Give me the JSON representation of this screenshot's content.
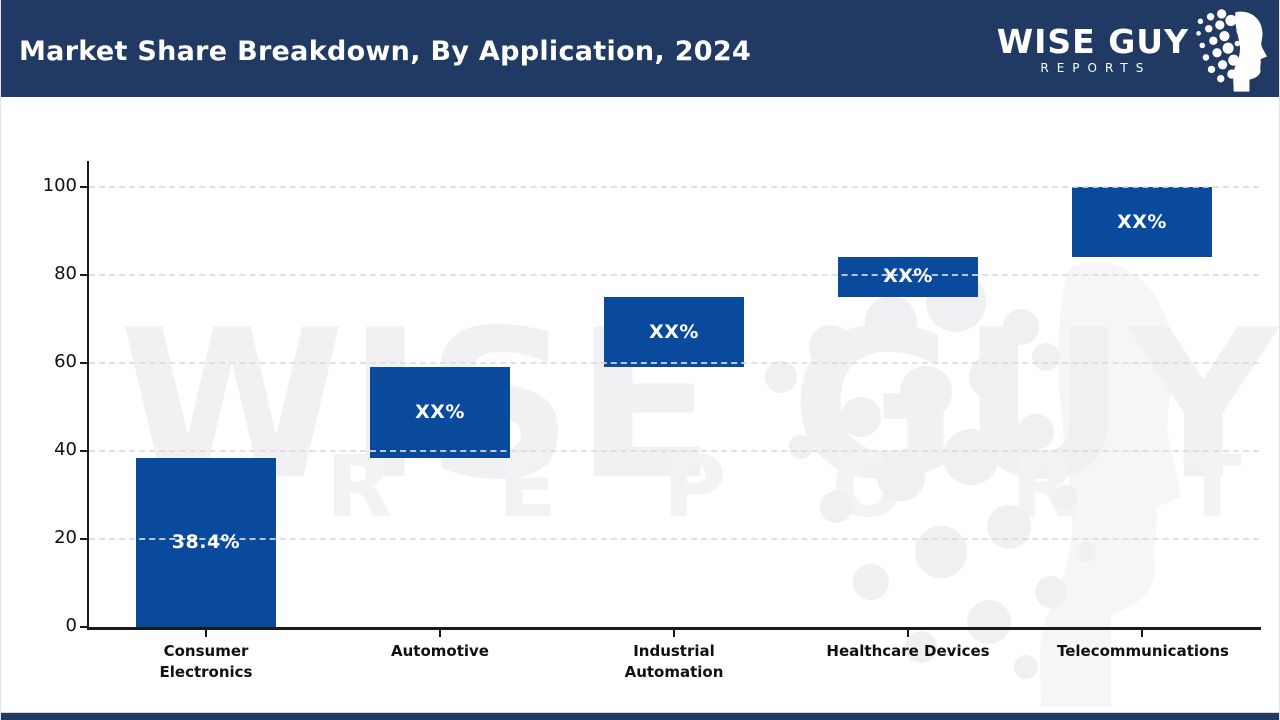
{
  "header": {
    "title": "Market Share Breakdown, By Application, 2024",
    "logo": {
      "line1": "WISE GUY",
      "line2": "REPORTS",
      "head_icon": "dotted-face-profile"
    }
  },
  "watermark": {
    "line1": "WISE GUY",
    "line2": "R E P O R T S"
  },
  "colors": {
    "header_bg": "#213A63",
    "footer_bg": "#213A63",
    "bar": "#0A4A9D",
    "bar_label": "#FFFFFF",
    "grid": "#DCDCDC",
    "axis": "#1A1A1A",
    "text": "#111111",
    "watermark": "#F1F1F3"
  },
  "chart_data": {
    "type": "bar",
    "subtype": "waterfall",
    "title": "Market Share Breakdown, By Application, 2024",
    "xlabel": "",
    "ylabel": "",
    "ylim": [
      0,
      105
    ],
    "yticks": [
      0,
      20,
      40,
      60,
      80,
      100
    ],
    "grid": "horizontal-dashed",
    "legend": "none",
    "categories": [
      "Consumer Electronics",
      "Automotive",
      "Industrial Automation",
      "Healthcare Devices",
      "Telecommunications"
    ],
    "segments": [
      {
        "category": "Consumer Electronics",
        "start": 0,
        "end": 38.4,
        "label": "38.4%"
      },
      {
        "category": "Automotive",
        "start": 38.4,
        "end": 59,
        "label": "XX%"
      },
      {
        "category": "Industrial Automation",
        "start": 59,
        "end": 75,
        "label": "XX%"
      },
      {
        "category": "Healthcare Devices",
        "start": 75,
        "end": 84,
        "label": "XX%"
      },
      {
        "category": "Telecommunications",
        "start": 84,
        "end": 100,
        "label": "XX%"
      }
    ]
  }
}
